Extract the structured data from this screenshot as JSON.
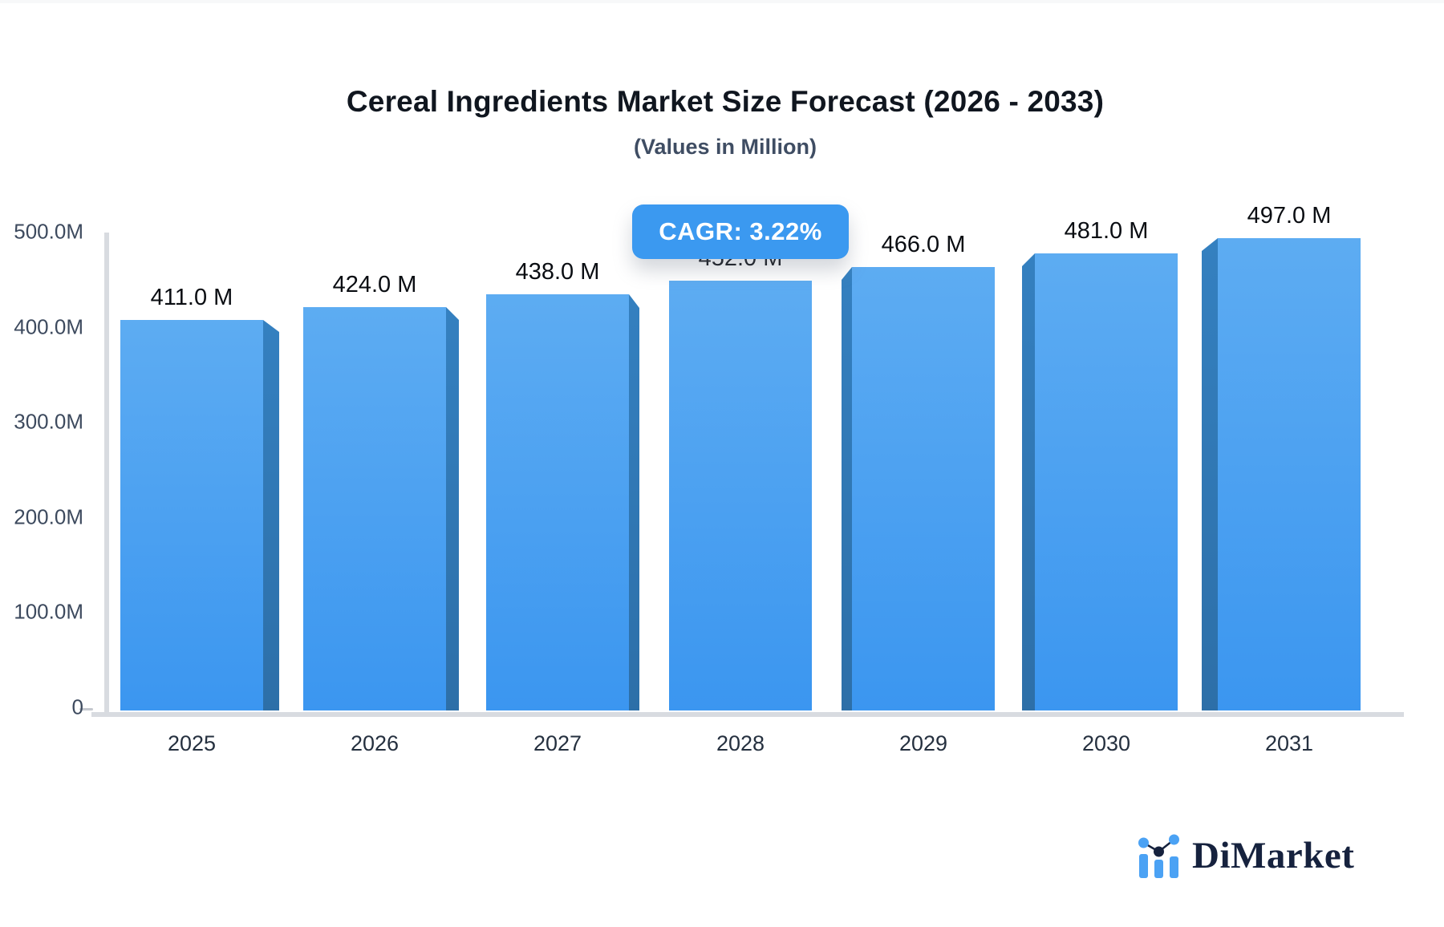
{
  "header": {
    "title": "Cereal Ingredients Market Size Forecast (2026 - 2033)",
    "subtitle": "(Values in Million)"
  },
  "badge": {
    "label": "CAGR: 3.22%"
  },
  "chart_data": {
    "type": "bar",
    "style": "3d-column",
    "title": "Cereal Ingredients Market Size Forecast (2026 - 2033)",
    "subtitle": "(Values in Million)",
    "unit": "Million (M)",
    "categories": [
      "2025",
      "2026",
      "2027",
      "2028",
      "2029",
      "2030",
      "2031"
    ],
    "values": [
      411,
      424,
      438,
      452,
      466,
      481,
      497
    ],
    "value_labels": [
      "411.0 M",
      "424.0 M",
      "438.0 M",
      "452.0 M",
      "466.0 M",
      "481.0 M",
      "497.0 M"
    ],
    "y_ticks": [
      "500.0M",
      "400.0M",
      "300.0M",
      "200.0M",
      "100.0M",
      "0"
    ],
    "ylim": [
      0,
      500
    ],
    "xlabel": "",
    "ylabel": "",
    "grid": false,
    "legend": "none",
    "annotation": "CAGR: 3.22%"
  },
  "colors": {
    "bar_front_top": "#5dacf2",
    "bar_front_bottom": "#3b96f0",
    "bar_side_top": "#3480c0",
    "bar_side_bottom": "#2d6fa8",
    "badge_bg": "#3b99f0",
    "badge_text": "#ffffff",
    "axis_line": "#d8dbe0",
    "tick": "#c4c8ce",
    "title_text": "#10161f",
    "subtitle_text": "#3f4d63",
    "y_label": "#3d4a5e",
    "x_label": "#25303f",
    "value_label": "#0a0d12",
    "logo_navy": "#16223e",
    "logo_blue": "#4ba2f4"
  },
  "logo": {
    "text": "DiMarket"
  }
}
